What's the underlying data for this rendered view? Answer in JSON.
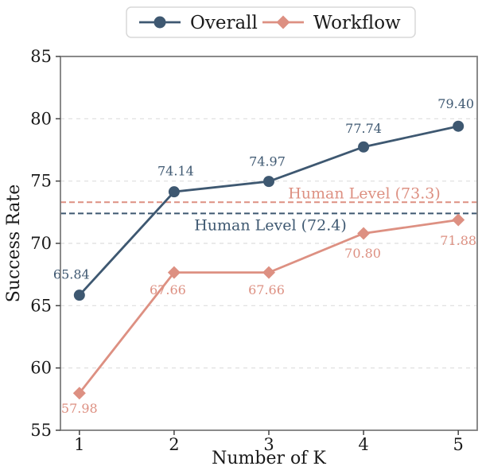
{
  "chart_data": {
    "type": "line",
    "title": "",
    "xlabel": "Number of K",
    "ylabel": "Success Rate",
    "x": [
      1,
      2,
      3,
      4,
      5
    ],
    "xlim": [
      0.8,
      5.2
    ],
    "ylim": [
      55,
      85
    ],
    "xticks": [
      1,
      2,
      3,
      4,
      5
    ],
    "xtick_labels": [
      "1",
      "2",
      "3",
      "4",
      "5"
    ],
    "yticks": [
      55,
      60,
      65,
      70,
      75,
      80,
      85
    ],
    "ytick_labels": [
      "55",
      "60",
      "65",
      "70",
      "75",
      "80",
      "85"
    ],
    "grid": "horizontal-dashed",
    "legend_position": "top-center-outside",
    "series": [
      {
        "name": "Overall",
        "color": "#3e5871",
        "marker": "circle",
        "values": [
          65.84,
          74.14,
          74.97,
          77.74,
          79.4
        ],
        "point_labels": [
          "65.84",
          "74.14",
          "74.97",
          "77.74",
          "79.40"
        ],
        "label_offsets": [
          [
            -10,
            -26
          ],
          [
            2,
            -26
          ],
          [
            -2,
            -25
          ],
          [
            0,
            -23
          ],
          [
            -3,
            -28
          ]
        ]
      },
      {
        "name": "Workflow",
        "color": "#dd9082",
        "marker": "diamond",
        "values": [
          57.98,
          67.66,
          67.66,
          70.8,
          71.88
        ],
        "point_labels": [
          "57.98",
          "67.66",
          "67.66",
          "70.80",
          "71.88"
        ],
        "label_offsets": [
          [
            0,
            19
          ],
          [
            -8,
            22
          ],
          [
            -3,
            22
          ],
          [
            -1,
            25
          ],
          [
            0,
            26
          ]
        ]
      }
    ],
    "reference_lines": [
      {
        "label": "Human Level (73.3)",
        "value": 73.3,
        "color": "#dd9082",
        "label_anchor_x": 458,
        "label_side": "above"
      },
      {
        "label": "Human Level (72.4)",
        "value": 72.4,
        "color": "#3e5871",
        "label_anchor_x": 340,
        "label_side": "below"
      }
    ]
  },
  "style_colors": {
    "spine": "#7e7e7e",
    "grid": "#dedede",
    "tick_text": "#1a1a1a",
    "legend_border": "#d8d8d8",
    "legend_text": "#1a1a1a",
    "background": "#ffffff"
  }
}
